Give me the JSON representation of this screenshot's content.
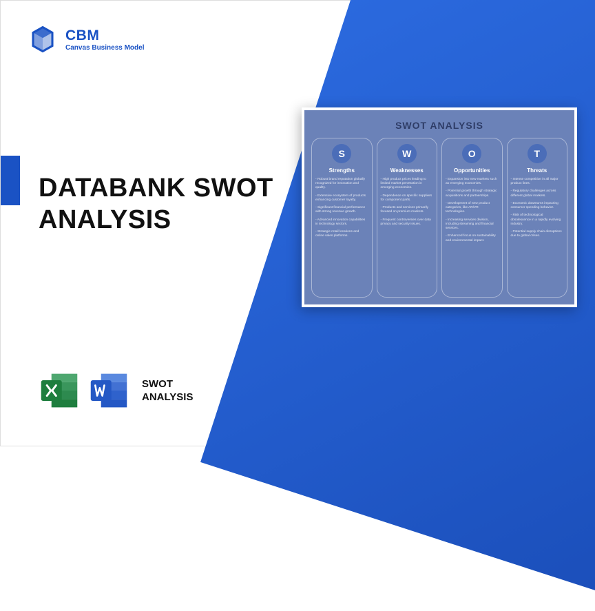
{
  "logo": {
    "title": "CBM",
    "subtitle": "Canvas Business Model",
    "color": "#1a52c4"
  },
  "heading": {
    "line1": "DATABANK SWOT",
    "line2": "ANALYSIS"
  },
  "bottom_label": {
    "line1": "SWOT",
    "line2": "ANALYSIS"
  },
  "accent_color": "#1a52c4",
  "diagonal_gradient": {
    "from": "#2d6de3",
    "to": "#1a4db8"
  },
  "icons": {
    "excel_color": "#1e7e3e",
    "word_color": "#2458c5"
  },
  "swot_card": {
    "title": "SWOT ANALYSIS",
    "background": "#6b82b8",
    "col_border": "#aab7d6",
    "circle_color": "#4b6db8",
    "title_color": "#2e3c66",
    "columns": [
      {
        "letter": "S",
        "heading": "Strengths",
        "items": [
          "Robust brand reputation globally recognized for innovation and quality.",
          "Extensive ecosystem of products enhancing customer loyalty.",
          "Significant financial performance with strong revenue growth.",
          "Advanced innovation capabilities in technology sectors.",
          "Strategic retail locations and online sales platforms."
        ]
      },
      {
        "letter": "W",
        "heading": "Weaknesses",
        "items": [
          "High product prices leading to limited market penetration in emerging economies.",
          "Dependence on specific suppliers for component parts.",
          "Products and services primarily focused on premium markets.",
          "Frequent controversies over data privacy and security issues."
        ]
      },
      {
        "letter": "O",
        "heading": "Opportunities",
        "items": [
          "Expansion into new markets such as emerging economies.",
          "Potential growth through strategic acquisitions and partnerships.",
          "Development of new product categories, like AR/VR technologies.",
          "Increasing services division, including streaming and financial services.",
          "Enhanced focus on sustainability and environmental impact."
        ]
      },
      {
        "letter": "T",
        "heading": "Threats",
        "items": [
          "Intense competition in all major product lines.",
          "Regulatory challenges across different global markets.",
          "Economic downturns impacting consumer spending behavior.",
          "Risk of technological obsolescence in a rapidly evolving industry.",
          "Potential supply chain disruptions due to global crises."
        ]
      }
    ]
  }
}
